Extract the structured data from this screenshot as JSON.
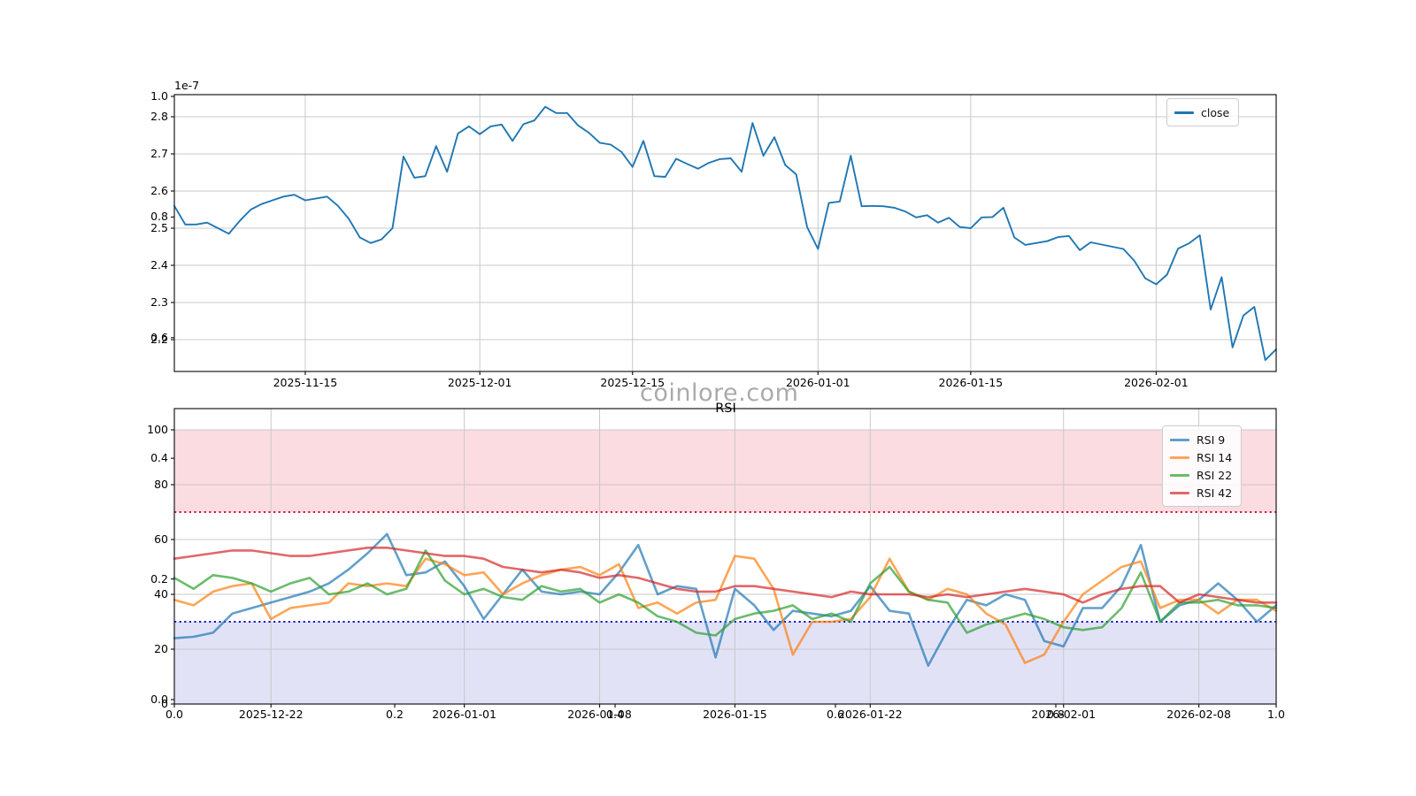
{
  "watermark": "coinlore.com",
  "overlay_axis": {
    "x_ticks": [
      "0.0",
      "0.2",
      "0.4",
      "0.6",
      "0.8",
      "1.0"
    ],
    "y_ticks": [
      "1.0",
      "0.8",
      "0.6",
      "0.4",
      "0.2",
      "0.0"
    ]
  },
  "chart_data": [
    {
      "type": "line",
      "name": "price",
      "offset_label": "1e-7",
      "legend": [
        "close"
      ],
      "legend_position": "upper right",
      "grid": true,
      "ylim": [
        2.114,
        2.86
      ],
      "y_ticks": [
        {
          "label": "2.8",
          "value": 2.8
        },
        {
          "label": "2.7",
          "value": 2.7
        },
        {
          "label": "2.6",
          "value": 2.6
        },
        {
          "label": "2.5",
          "value": 2.5
        },
        {
          "label": "2.4",
          "value": 2.4
        },
        {
          "label": "2.3",
          "value": 2.3
        },
        {
          "label": "2.2",
          "value": 2.2
        }
      ],
      "x_ticks": [
        {
          "label": "2025-11-15",
          "day": 12
        },
        {
          "label": "2025-12-01",
          "day": 28
        },
        {
          "label": "2025-12-15",
          "day": 42
        },
        {
          "label": "2026-01-01",
          "day": 59
        },
        {
          "label": "2026-01-15",
          "day": 73
        },
        {
          "label": "2026-02-01",
          "day": 90
        }
      ],
      "start_date": "2025-11-03",
      "series": [
        {
          "name": "close",
          "color": "#1f77b4",
          "alpha": 1,
          "width": 1.9,
          "values": [
            2.56,
            2.51,
            2.51,
            2.515,
            2.5,
            2.485,
            2.52,
            2.55,
            2.565,
            2.575,
            2.585,
            2.59,
            2.575,
            2.58,
            2.585,
            2.56,
            2.525,
            2.475,
            2.46,
            2.47,
            2.5,
            2.693,
            2.636,
            2.64,
            2.721,
            2.652,
            2.755,
            2.774,
            2.753,
            2.774,
            2.779,
            2.735,
            2.78,
            2.79,
            2.827,
            2.81,
            2.81,
            2.777,
            2.757,
            2.73,
            2.725,
            2.705,
            2.665,
            2.735,
            2.64,
            2.638,
            2.687,
            2.673,
            2.66,
            2.676,
            2.686,
            2.688,
            2.652,
            2.783,
            2.695,
            2.745,
            2.67,
            2.645,
            2.503,
            2.444,
            2.568,
            2.572,
            2.695,
            2.559,
            2.56,
            2.559,
            2.555,
            2.545,
            2.529,
            2.535,
            2.515,
            2.528,
            2.503,
            2.5,
            2.529,
            2.53,
            2.555,
            2.475,
            2.455,
            2.46,
            2.465,
            2.476,
            2.479,
            2.441,
            2.462,
            2.456,
            2.45,
            2.444,
            2.412,
            2.365,
            2.349,
            2.375,
            2.445,
            2.459,
            2.481,
            2.281,
            2.368,
            2.179,
            2.265,
            2.288,
            2.145,
            2.174
          ]
        }
      ]
    },
    {
      "type": "line",
      "name": "rsi",
      "title": "RSI",
      "legend": [
        "RSI 9",
        "RSI 14",
        "RSI 22",
        "RSI 42"
      ],
      "legend_position": "upper right",
      "grid": true,
      "ylim": [
        0,
        108
      ],
      "y_ticks": [
        {
          "label": "100",
          "value": 100
        },
        {
          "label": "80",
          "value": 80
        },
        {
          "label": "60",
          "value": 60
        },
        {
          "label": "40",
          "value": 40
        },
        {
          "label": "20",
          "value": 20
        },
        {
          "label": "0",
          "value": 0
        }
      ],
      "x_ticks": [
        {
          "label": "2025-12-22",
          "day": 5
        },
        {
          "label": "2026-01-01",
          "day": 15
        },
        {
          "label": "2026-01-08",
          "day": 22
        },
        {
          "label": "2026-01-15",
          "day": 29
        },
        {
          "label": "2026-01-22",
          "day": 36
        },
        {
          "label": "2026-02-01",
          "day": 46
        },
        {
          "label": "2026-02-08",
          "day": 53
        }
      ],
      "start_date": "2025-12-17",
      "overbought_level": 70,
      "oversold_level": 30,
      "overbought_band_color": "#fbdce0",
      "oversold_band_color": "#e2e2f7",
      "overbought_line_color": "#d81530",
      "oversold_line_color": "#1414c8",
      "band_range_top": [
        70,
        100
      ],
      "band_range_bottom": [
        0,
        30
      ],
      "series": [
        {
          "name": "RSI 9",
          "color": "#1f77b4",
          "alpha": 0.7,
          "width": 2.6,
          "values": [
            24,
            24.5,
            26,
            33,
            35,
            37,
            39,
            41,
            44,
            49,
            55,
            62,
            47,
            48,
            52,
            43,
            31,
            40,
            49,
            41,
            40,
            41,
            40,
            48,
            58,
            40,
            43,
            42,
            17,
            42,
            36,
            27,
            34,
            33,
            32,
            34,
            43,
            34,
            33,
            14,
            27,
            38,
            36,
            40,
            38,
            23,
            21,
            35,
            35,
            43,
            58,
            30,
            36,
            38,
            44,
            38,
            30,
            36
          ]
        },
        {
          "name": "RSI 14",
          "color": "#ff7f0e",
          "alpha": 0.7,
          "width": 2.6,
          "values": [
            38,
            36,
            41,
            43,
            44,
            31,
            35,
            36,
            37,
            44,
            43,
            44,
            43,
            53,
            51,
            47,
            48,
            40,
            44,
            47,
            49,
            50,
            47,
            51,
            35,
            37,
            33,
            37,
            38,
            54,
            53,
            42,
            18,
            30,
            30,
            31,
            39,
            53,
            41,
            38,
            42,
            40,
            33,
            29,
            15,
            18,
            30,
            40,
            45,
            50,
            52,
            35,
            38,
            38,
            33,
            38,
            38,
            34
          ]
        },
        {
          "name": "RSI 22",
          "color": "#2ca02c",
          "alpha": 0.7,
          "width": 2.6,
          "values": [
            46,
            42,
            47,
            46,
            44,
            41,
            44,
            46,
            40,
            41,
            44,
            40,
            42,
            56,
            45,
            40,
            42,
            39,
            38,
            43,
            41,
            42,
            37,
            40,
            37,
            32,
            30,
            26,
            25,
            31,
            33,
            34,
            36,
            31,
            33,
            30,
            44,
            50,
            41,
            38,
            37,
            26,
            29,
            31,
            33,
            31,
            28,
            27,
            28,
            35,
            48,
            30,
            37,
            37,
            38,
            36,
            36,
            35
          ]
        },
        {
          "name": "RSI 42",
          "color": "#d62728",
          "alpha": 0.7,
          "width": 2.6,
          "values": [
            53,
            54,
            55,
            56,
            56,
            55,
            54,
            54,
            55,
            56,
            57,
            57,
            56,
            55,
            54,
            54,
            53,
            50,
            49,
            48,
            49,
            48,
            46,
            47,
            46,
            44,
            42,
            41,
            41,
            43,
            43,
            42,
            41,
            40,
            39,
            41,
            40,
            40,
            40,
            39,
            40,
            39,
            40,
            41,
            42,
            41,
            40,
            37,
            40,
            42,
            43,
            43,
            37,
            40,
            39,
            38,
            37,
            37
          ]
        }
      ]
    }
  ]
}
